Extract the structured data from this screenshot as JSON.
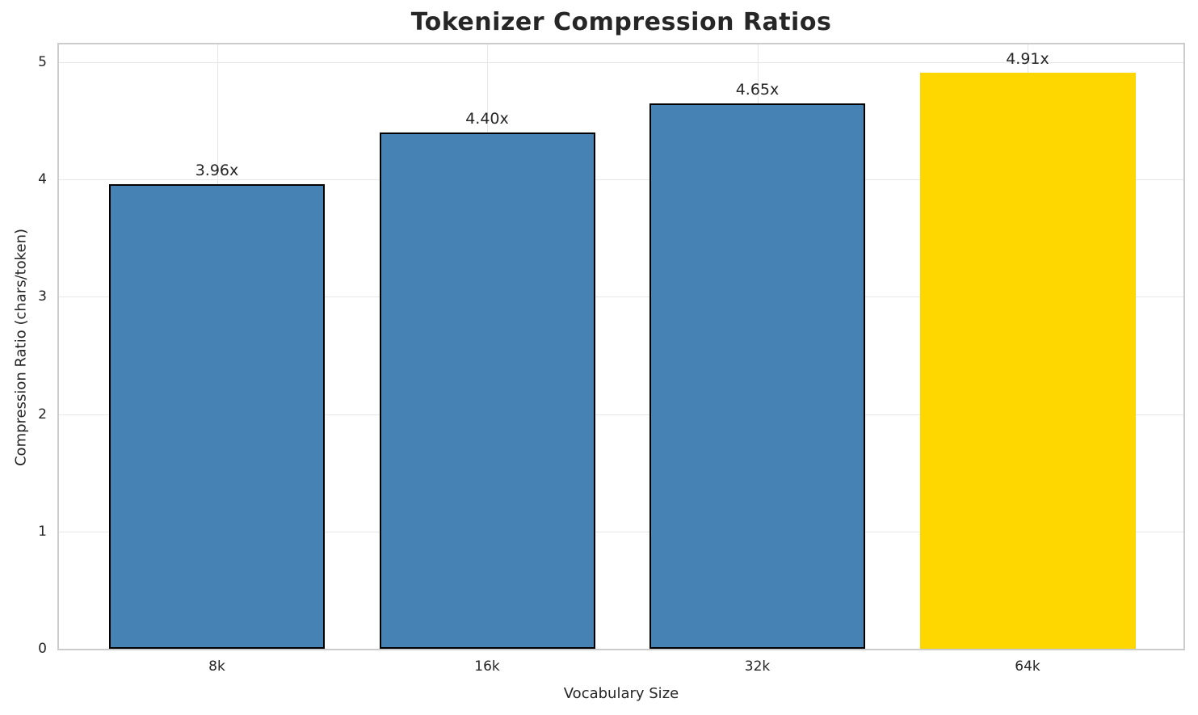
{
  "chart_data": {
    "type": "bar",
    "title": "Tokenizer Compression Ratios",
    "xlabel": "Vocabulary Size",
    "ylabel": "Compression Ratio (chars/token)",
    "categories": [
      "8k",
      "16k",
      "32k",
      "64k"
    ],
    "values": [
      3.96,
      4.4,
      4.65,
      4.91
    ],
    "bar_labels": [
      "3.96x",
      "4.40x",
      "4.65x",
      "4.91x"
    ],
    "yticks": [
      "0",
      "1",
      "2",
      "3",
      "4",
      "5"
    ],
    "ylim": [
      0,
      5.15
    ],
    "grid": "on",
    "legend": "none",
    "styles": {
      "bar_color": "#4682b4",
      "highlight_bar_color": "#ffd700",
      "bar_edge_color": "#000000",
      "highlight_index": 3,
      "grid_color": "#e7e7e7",
      "spine_color": "#cccccc",
      "text_color": "#262626",
      "background_color": "#ffffff"
    }
  }
}
